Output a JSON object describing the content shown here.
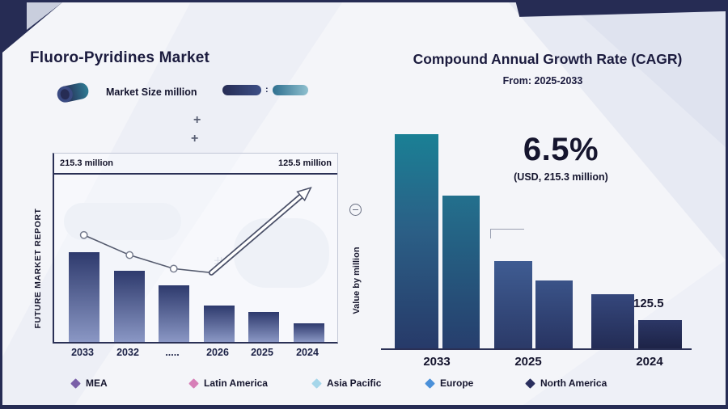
{
  "left_panel": {
    "title": "Fluoro-Pyridines Market",
    "legend_label": "Market Size million",
    "watermark": "FUTURE MARKET REPORT",
    "top_left_value": "215.3 million",
    "top_right_value": "125.5 million"
  },
  "right_panel": {
    "title": "Compound Annual Growth Rate (CAGR)",
    "subtitle": "From: 2025-2033",
    "cagr": "6.5%",
    "cagr_note": "(USD, 215.3 million)",
    "axis_label": "Value by million",
    "value_label": "125.5"
  },
  "icons": {
    "plus": "+"
  },
  "footer": {
    "items": [
      {
        "label": "MEA",
        "color": "#7a5fa8"
      },
      {
        "label": "Latin America",
        "color": "#d77fb8"
      },
      {
        "label": "Asia Pacific",
        "color": "#a5d6ea"
      },
      {
        "label": "Europe",
        "color": "#4a90d9"
      },
      {
        "label": "North America",
        "color": "#2a2f5e"
      }
    ]
  },
  "chart_data": [
    {
      "type": "bar",
      "title": "Fluoro-Pyridines Market — Market Size (million USD)",
      "categories": [
        "2033",
        "2032",
        ".....",
        "2026",
        "2025",
        "2024"
      ],
      "values": [
        215.3,
        192,
        170,
        148,
        136,
        125.5
      ],
      "note": "Only 215.3 (2033) and 125.5 (2024) are labeled; intermediate values estimated from bar heights",
      "ylabel": "FUTURE MARKET REPORT",
      "annotations": [
        "215.3 million",
        "125.5 million"
      ],
      "trend": "marker line descending across 2033-2026, then outlined arrow rising toward the 125.5 million label",
      "display_heights_pct": [
        54,
        43,
        34,
        22,
        18,
        11
      ]
    },
    {
      "type": "bar",
      "title": "Compound Annual Growth Rate (CAGR)",
      "subtitle": "From: 2025-2033",
      "categories": [
        "2033",
        "2025",
        "2024"
      ],
      "labeled_values": {
        "2033": 215.3,
        "2024": 125.5
      },
      "cagr_pct": 6.5,
      "cagr_note": "(USD, 215.3 million)",
      "ylabel": "Value by million",
      "bars_per_group": 2,
      "display_heights_pct": [
        98,
        70,
        40,
        31,
        25,
        13
      ]
    }
  ]
}
